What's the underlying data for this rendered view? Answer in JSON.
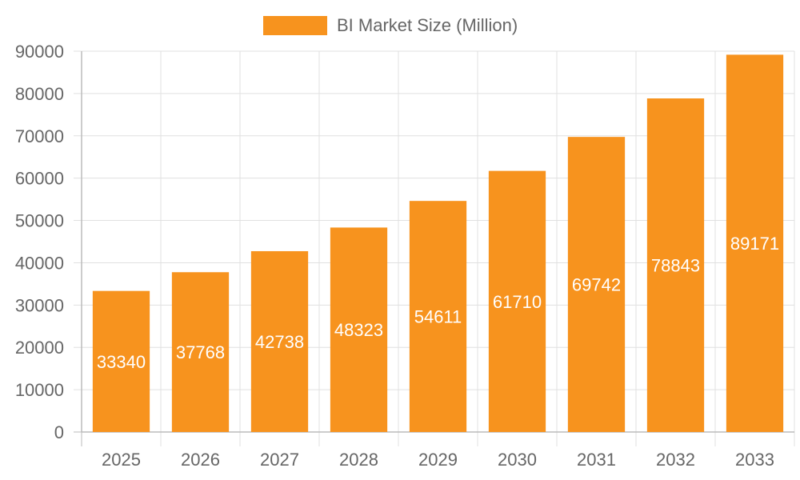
{
  "chart_data": {
    "type": "bar",
    "categories": [
      "2025",
      "2026",
      "2027",
      "2028",
      "2029",
      "2030",
      "2031",
      "2032",
      "2033"
    ],
    "series": [
      {
        "name": "BI Market Size (Million)",
        "values": [
          33340,
          37768,
          42738,
          48323,
          54611,
          61710,
          69742,
          78843,
          89171
        ]
      }
    ],
    "ylim": [
      0,
      90000
    ],
    "yticks": [
      "0",
      "10000",
      "20000",
      "30000",
      "40000",
      "50000",
      "60000",
      "70000",
      "80000",
      "90000"
    ],
    "legend_position": "top",
    "grid": true,
    "bar_color": "#f7931e",
    "grid_color": "#e0e0e0",
    "axis_color": "#bbbbbb",
    "text_color": "#666666",
    "data_label_color": "#ffffff"
  }
}
